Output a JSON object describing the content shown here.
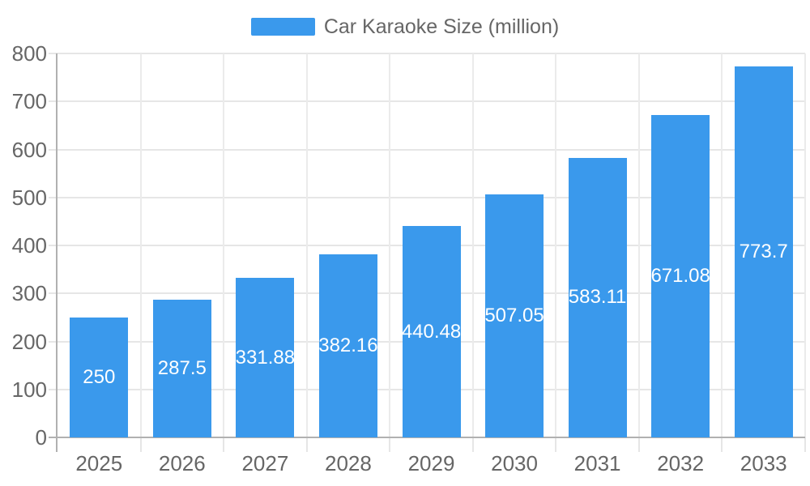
{
  "legend": {
    "position": "top"
  },
  "chart_data": {
    "type": "bar",
    "title": "",
    "categories": [
      "2025",
      "2026",
      "2027",
      "2028",
      "2029",
      "2030",
      "2031",
      "2032",
      "2033"
    ],
    "series": [
      {
        "name": "Car Karaoke Size (million)",
        "values": [
          250,
          287.5,
          331.88,
          382.16,
          440.48,
          507.05,
          583.11,
          671.08,
          773.7
        ]
      }
    ],
    "value_labels": [
      "250",
      "287.5",
      "331.88",
      "382.16",
      "440.48",
      "507.05",
      "583.11",
      "671.08",
      "773.7"
    ],
    "xlabel": "",
    "ylabel": "",
    "ylim": [
      0,
      800
    ],
    "ytick_interval": 100,
    "yticks": [
      "0",
      "100",
      "200",
      "300",
      "400",
      "500",
      "600",
      "700",
      "800"
    ],
    "grid": true,
    "legend_position": "top",
    "colors": {
      "bar": "#3A99EC",
      "grid": "#E6E6E6",
      "axis_line": "#B1B1B1",
      "axis_text": "#666666",
      "value_label": "#FFFFFF",
      "background": "#FFFFFF"
    }
  }
}
